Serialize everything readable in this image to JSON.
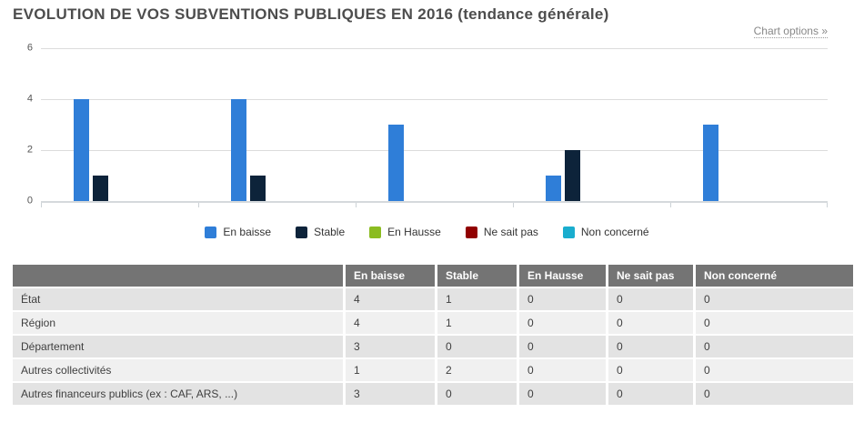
{
  "header": {
    "title": "EVOLUTION DE VOS SUBVENTIONS PUBLIQUES EN 2016 (tendance générale)",
    "chart_options_label": "Chart options »"
  },
  "chart_data": {
    "type": "bar",
    "title": "EVOLUTION DE VOS SUBVENTIONS PUBLIQUES EN 2016 (tendance générale)",
    "categories": [
      "État",
      "Région",
      "Département",
      "Autres collectivités",
      "Autres financeurs publics (ex : CAF, ARS, ...)"
    ],
    "series": [
      {
        "name": "En baisse",
        "color": "#2f7ed8",
        "values": [
          4,
          4,
          3,
          1,
          3
        ]
      },
      {
        "name": "Stable",
        "color": "#0d233a",
        "values": [
          1,
          1,
          0,
          2,
          0
        ]
      },
      {
        "name": "En Hausse",
        "color": "#8bbc21",
        "values": [
          0,
          0,
          0,
          0,
          0
        ]
      },
      {
        "name": "Ne sait pas",
        "color": "#910000",
        "values": [
          0,
          0,
          0,
          0,
          0
        ]
      },
      {
        "name": "Non concerné",
        "color": "#1aadce",
        "values": [
          0,
          0,
          0,
          0,
          0
        ]
      }
    ],
    "xlabel": "",
    "ylabel": "",
    "ylim": [
      0,
      6
    ],
    "yticks": [
      0,
      2,
      4,
      6
    ],
    "grid": true,
    "x_axis_category_labels_visible": false,
    "legend_position": "bottom"
  },
  "table": {
    "columns": [
      "",
      "En baisse",
      "Stable",
      "En Hausse",
      "Ne sait pas",
      "Non concerné"
    ],
    "rows": [
      {
        "label": "État",
        "values": [
          "4",
          "1",
          "0",
          "0",
          "0"
        ]
      },
      {
        "label": "Région",
        "values": [
          "4",
          "1",
          "0",
          "0",
          "0"
        ]
      },
      {
        "label": "Département",
        "values": [
          "3",
          "0",
          "0",
          "0",
          "0"
        ]
      },
      {
        "label": "Autres collectivités",
        "values": [
          "1",
          "2",
          "0",
          "0",
          "0"
        ]
      },
      {
        "label": "Autres financeurs publics (ex : CAF, ARS, ...)",
        "values": [
          "3",
          "0",
          "0",
          "0",
          "0"
        ]
      }
    ]
  }
}
